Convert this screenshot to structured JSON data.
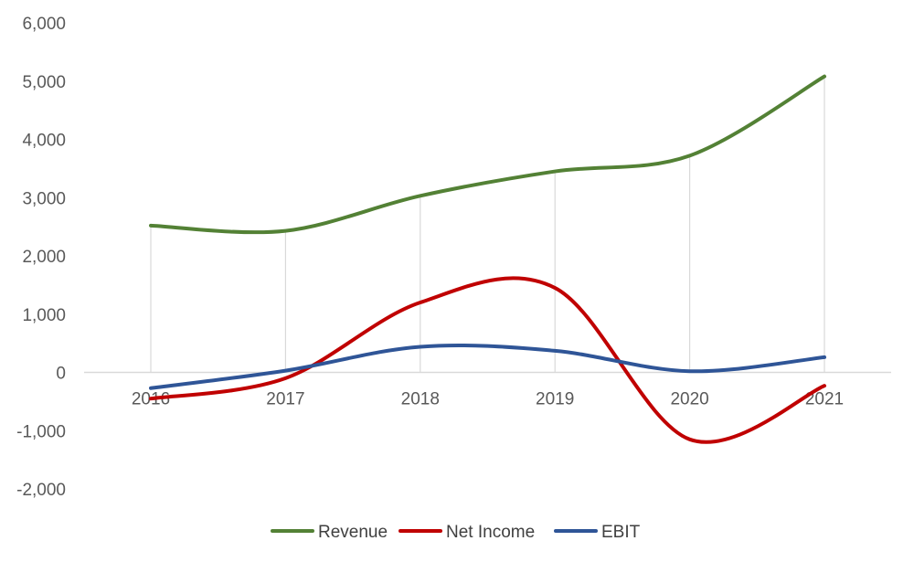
{
  "chart_data": {
    "type": "line",
    "smooth": true,
    "categories": [
      "2016",
      "2017",
      "2018",
      "2019",
      "2020",
      "2021"
    ],
    "series": [
      {
        "name": "Revenue",
        "color": "#538135",
        "values": [
          2520,
          2430,
          3030,
          3450,
          3720,
          5080
        ]
      },
      {
        "name": "Net Income",
        "color": "#C00000",
        "values": [
          -450,
          -100,
          1200,
          1450,
          -1150,
          -230
        ]
      },
      {
        "name": "EBIT",
        "color": "#2F5597",
        "values": [
          -270,
          30,
          440,
          370,
          20,
          260
        ]
      }
    ],
    "y_ticks": [
      "6,000",
      "5,000",
      "4,000",
      "3,000",
      "2,000",
      "1,000",
      "0",
      "-1,000",
      "-2,000"
    ],
    "ylim": [
      -2000,
      6000
    ],
    "vertical_gridlines": true,
    "horizontal_gridlines": false,
    "legend_position": "bottom"
  }
}
